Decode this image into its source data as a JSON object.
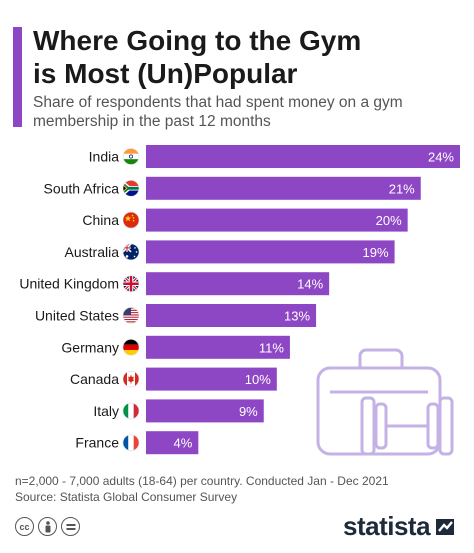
{
  "header": {
    "title_line1": "Where Going to the Gym",
    "title_line2": "is Most (Un)Popular",
    "subtitle": "Share of respondents that had spent money on a gym membership in the past 12 months"
  },
  "chart_data": {
    "type": "bar",
    "orientation": "horizontal",
    "categories": [
      "India",
      "South Africa",
      "China",
      "Australia",
      "United Kingdom",
      "United States",
      "Germany",
      "Canada",
      "Italy",
      "France"
    ],
    "values": [
      24,
      21,
      20,
      19,
      14,
      13,
      11,
      10,
      9,
      4
    ],
    "value_labels": [
      "24%",
      "21%",
      "20%",
      "19%",
      "14%",
      "13%",
      "11%",
      "10%",
      "9%",
      "4%"
    ],
    "unit": "%",
    "title": "Where Going to the Gym is Most (Un)Popular",
    "xlabel": "",
    "ylabel": "",
    "xlim": [
      0,
      24
    ],
    "grid": false,
    "legend": "none",
    "colors": {
      "bar": "#8e47c4",
      "illustration": "#c4b1e6"
    },
    "flag_icons": [
      "india-flag-icon",
      "south-africa-flag-icon",
      "china-flag-icon",
      "australia-flag-icon",
      "united-kingdom-flag-icon",
      "united-states-flag-icon",
      "germany-flag-icon",
      "canada-flag-icon",
      "italy-flag-icon",
      "france-flag-icon"
    ]
  },
  "footer": {
    "note": "n=2,000 - 7,000 adults (18-64) per country. Conducted Jan - Dec 2021",
    "source": "Source: Statista Global Consumer Survey",
    "license_icons": [
      "cc-icon",
      "by-icon",
      "nd-icon"
    ],
    "logo": "statista"
  }
}
